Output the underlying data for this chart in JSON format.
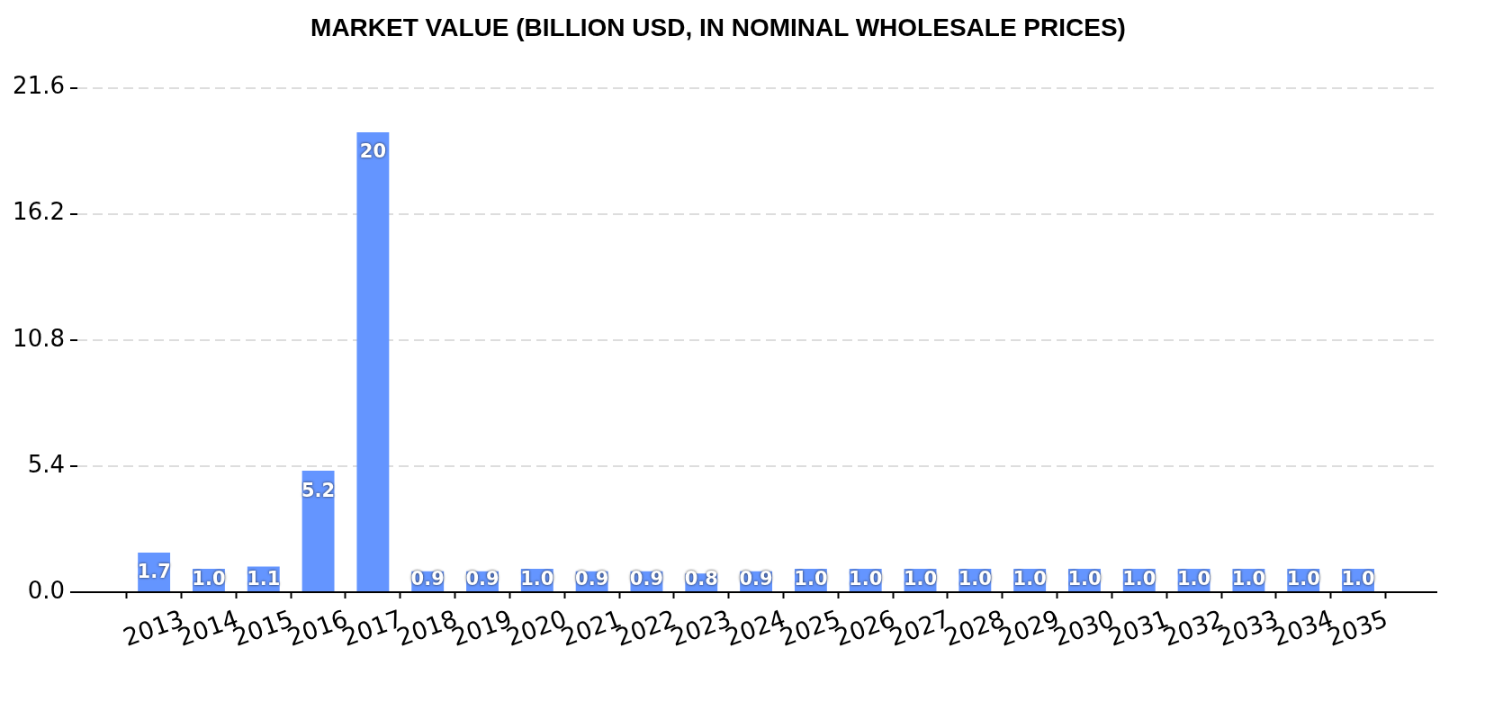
{
  "chart_data": {
    "type": "bar",
    "title": "MARKET VALUE (BILLION USD, IN NOMINAL WHOLESALE PRICES)",
    "categories": [
      "2013",
      "2014",
      "2015",
      "2016",
      "2017",
      "2018",
      "2019",
      "2020",
      "2021",
      "2022",
      "2023",
      "2024",
      "2025",
      "2026",
      "2027",
      "2028",
      "2029",
      "2030",
      "2031",
      "2032",
      "2033",
      "2034",
      "2035"
    ],
    "values": [
      1.7,
      1.0,
      1.1,
      5.2,
      19.7,
      0.9,
      0.9,
      1.0,
      0.9,
      0.9,
      0.8,
      0.9,
      1.0,
      1.0,
      1.0,
      1.0,
      1.0,
      1.0,
      1.0,
      1.0,
      1.0,
      1.0,
      1.0
    ],
    "value_labels": [
      "1.7",
      "1.0",
      "1.1",
      "5.2",
      "20",
      "0.9",
      "0.9",
      "1.0",
      "0.9",
      "0.9",
      "0.8",
      "0.9",
      "1.0",
      "1.0",
      "1.0",
      "1.0",
      "1.0",
      "1.0",
      "1.0",
      "1.0",
      "1.0",
      "1.0",
      "1.0"
    ],
    "color": "#6495ff",
    "ylim": [
      0,
      21.6
    ],
    "yticks": [
      {
        "value": 0,
        "label": "0.0"
      },
      5.4,
      10.8,
      16.2,
      21.6
    ],
    "grid": "y"
  }
}
